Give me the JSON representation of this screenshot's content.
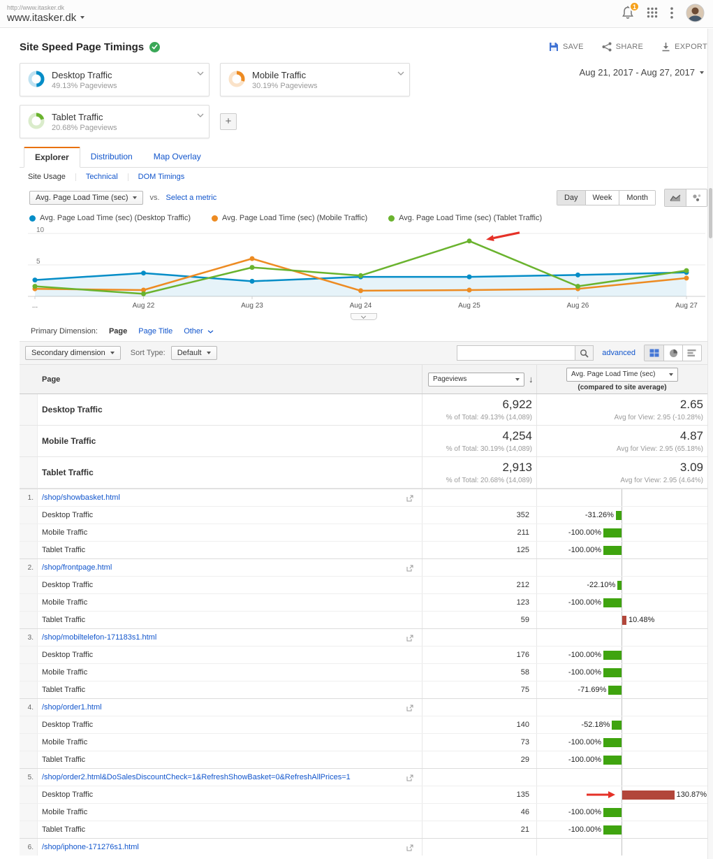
{
  "topbar": {
    "url": "http://www.itasker.dk",
    "account": "www.itasker.dk",
    "notification_count": "1"
  },
  "header": {
    "title": "Site Speed Page Timings",
    "save_label": "SAVE",
    "share_label": "SHARE",
    "export_label": "EXPORT"
  },
  "date_range": "Aug 21, 2017 - Aug 27, 2017",
  "segments": [
    {
      "name": "Desktop Traffic",
      "sub": "49.13% Pageviews",
      "pct": 49.13,
      "color": "#058dc7"
    },
    {
      "name": "Mobile Traffic",
      "sub": "30.19% Pageviews",
      "pct": 30.19,
      "color": "#ed8b22"
    },
    {
      "name": "Tablet Traffic",
      "sub": "20.68% Pageviews",
      "pct": 20.68,
      "color": "#6ab32e"
    }
  ],
  "tabs": {
    "explorer": "Explorer",
    "distribution": "Distribution",
    "map_overlay": "Map Overlay"
  },
  "subtabs": {
    "site_usage": "Site Usage",
    "technical": "Technical",
    "dom_timings": "DOM Timings"
  },
  "metric_bar": {
    "metric": "Avg. Page Load Time (sec)",
    "vs_label": "vs.",
    "select_metric": "Select a metric",
    "day": "Day",
    "week": "Week",
    "month": "Month"
  },
  "legend": [
    {
      "label": "Avg. Page Load Time (sec) (Desktop Traffic)",
      "color": "#058dc7"
    },
    {
      "label": "Avg. Page Load Time (sec) (Mobile Traffic)",
      "color": "#ed8b22"
    },
    {
      "label": "Avg. Page Load Time (sec) (Tablet Traffic)",
      "color": "#6ab32e"
    }
  ],
  "chart_data": {
    "type": "line",
    "x": [
      "...",
      "Aug 22",
      "Aug 23",
      "Aug 24",
      "Aug 25",
      "Aug 26",
      "Aug 27"
    ],
    "ylim": [
      0,
      10
    ],
    "yticks": [
      5,
      10
    ],
    "series": [
      {
        "name": "Avg. Page Load Time (sec) (Desktop Traffic)",
        "color": "#058dc7",
        "area": true,
        "values": [
          2.6,
          3.7,
          2.4,
          3.1,
          3.1,
          3.4,
          3.8
        ]
      },
      {
        "name": "Avg. Page Load Time (sec) (Mobile Traffic)",
        "color": "#ed8b22",
        "values": [
          1.2,
          1.0,
          6.0,
          0.9,
          1.0,
          1.2,
          2.9
        ]
      },
      {
        "name": "Avg. Page Load Time (sec) (Tablet Traffic)",
        "color": "#6ab32e",
        "values": [
          1.6,
          0.4,
          4.6,
          3.3,
          8.8,
          1.6,
          4.1
        ]
      }
    ],
    "annotation": "red arrow pointing at Tablet Traffic peak on Aug 25",
    "annotation_color": "#e53127"
  },
  "dimension_bar": {
    "label": "Primary Dimension:",
    "primary": "Page",
    "page_title": "Page Title",
    "other": "Other"
  },
  "table_toolbar": {
    "secondary_dimension": "Secondary dimension",
    "sort_type_label": "Sort Type:",
    "sort_type_value": "Default",
    "advanced_label": "advanced",
    "search_value": ""
  },
  "table": {
    "col_page": "Page",
    "col_pageviews": "Pageviews",
    "col_load": "Avg. Page Load Time (sec)",
    "col_load_sub": "(compared to site average)",
    "sort_desc_icon": "↓",
    "colors": {
      "positive_bar": "#b2463a",
      "negative_bar": "#3fa40f"
    },
    "summary": [
      {
        "label": "Desktop Traffic",
        "pageviews": "6,922",
        "pageviews_sub": "% of Total: 49.13% (14,089)",
        "load_time": "2.65",
        "load_sub": "Avg for View: 2.95 (-10.28%)"
      },
      {
        "label": "Mobile Traffic",
        "pageviews": "4,254",
        "pageviews_sub": "% of Total: 30.19% (14,089)",
        "load_time": "4.87",
        "load_sub": "Avg for View: 2.95 (65.18%)"
      },
      {
        "label": "Tablet Traffic",
        "pageviews": "2,913",
        "pageviews_sub": "% of Total: 20.68% (14,089)",
        "load_time": "3.09",
        "load_sub": "Avg for View: 2.95 (4.64%)"
      }
    ],
    "pages": [
      {
        "num": "1.",
        "url": "/shop/showbasket.html",
        "rows": [
          {
            "segment": "Desktop Traffic",
            "pageviews": "352",
            "pct": -31.26,
            "pct_label": "-31.26%"
          },
          {
            "segment": "Mobile Traffic",
            "pageviews": "211",
            "pct": -100,
            "pct_label": "-100.00%"
          },
          {
            "segment": "Tablet Traffic",
            "pageviews": "125",
            "pct": -100,
            "pct_label": "-100.00%"
          }
        ]
      },
      {
        "num": "2.",
        "url": "/shop/frontpage.html",
        "rows": [
          {
            "segment": "Desktop Traffic",
            "pageviews": "212",
            "pct": -22.1,
            "pct_label": "-22.10%"
          },
          {
            "segment": "Mobile Traffic",
            "pageviews": "123",
            "pct": -100,
            "pct_label": "-100.00%"
          },
          {
            "segment": "Tablet Traffic",
            "pageviews": "59",
            "pct": 10.48,
            "pct_label": "10.48%"
          }
        ]
      },
      {
        "num": "3.",
        "url": "/shop/mobiltelefon-171183s1.html",
        "rows": [
          {
            "segment": "Desktop Traffic",
            "pageviews": "176",
            "pct": -100,
            "pct_label": "-100.00%"
          },
          {
            "segment": "Mobile Traffic",
            "pageviews": "58",
            "pct": -100,
            "pct_label": "-100.00%"
          },
          {
            "segment": "Tablet Traffic",
            "pageviews": "75",
            "pct": -71.69,
            "pct_label": "-71.69%"
          }
        ]
      },
      {
        "num": "4.",
        "url": "/shop/order1.html",
        "rows": [
          {
            "segment": "Desktop Traffic",
            "pageviews": "140",
            "pct": -52.18,
            "pct_label": "-52.18%"
          },
          {
            "segment": "Mobile Traffic",
            "pageviews": "73",
            "pct": -100,
            "pct_label": "-100.00%"
          },
          {
            "segment": "Tablet Traffic",
            "pageviews": "29",
            "pct": -100,
            "pct_label": "-100.00%"
          }
        ]
      },
      {
        "num": "5.",
        "url": "/shop/order2.html&DoSalesDiscountCheck=1&RefreshShowBasket=0&RefreshAllPrices=1",
        "rows": [
          {
            "segment": "Desktop Traffic",
            "pageviews": "135",
            "pct": 130.87,
            "pct_label": "130.87%",
            "arrow": true
          },
          {
            "segment": "Mobile Traffic",
            "pageviews": "46",
            "pct": -100,
            "pct_label": "-100.00%"
          },
          {
            "segment": "Tablet Traffic",
            "pageviews": "21",
            "pct": -100,
            "pct_label": "-100.00%"
          }
        ]
      },
      {
        "num": "6.",
        "url": "/shop/iphone-171276s1.html",
        "rows": []
      }
    ]
  }
}
